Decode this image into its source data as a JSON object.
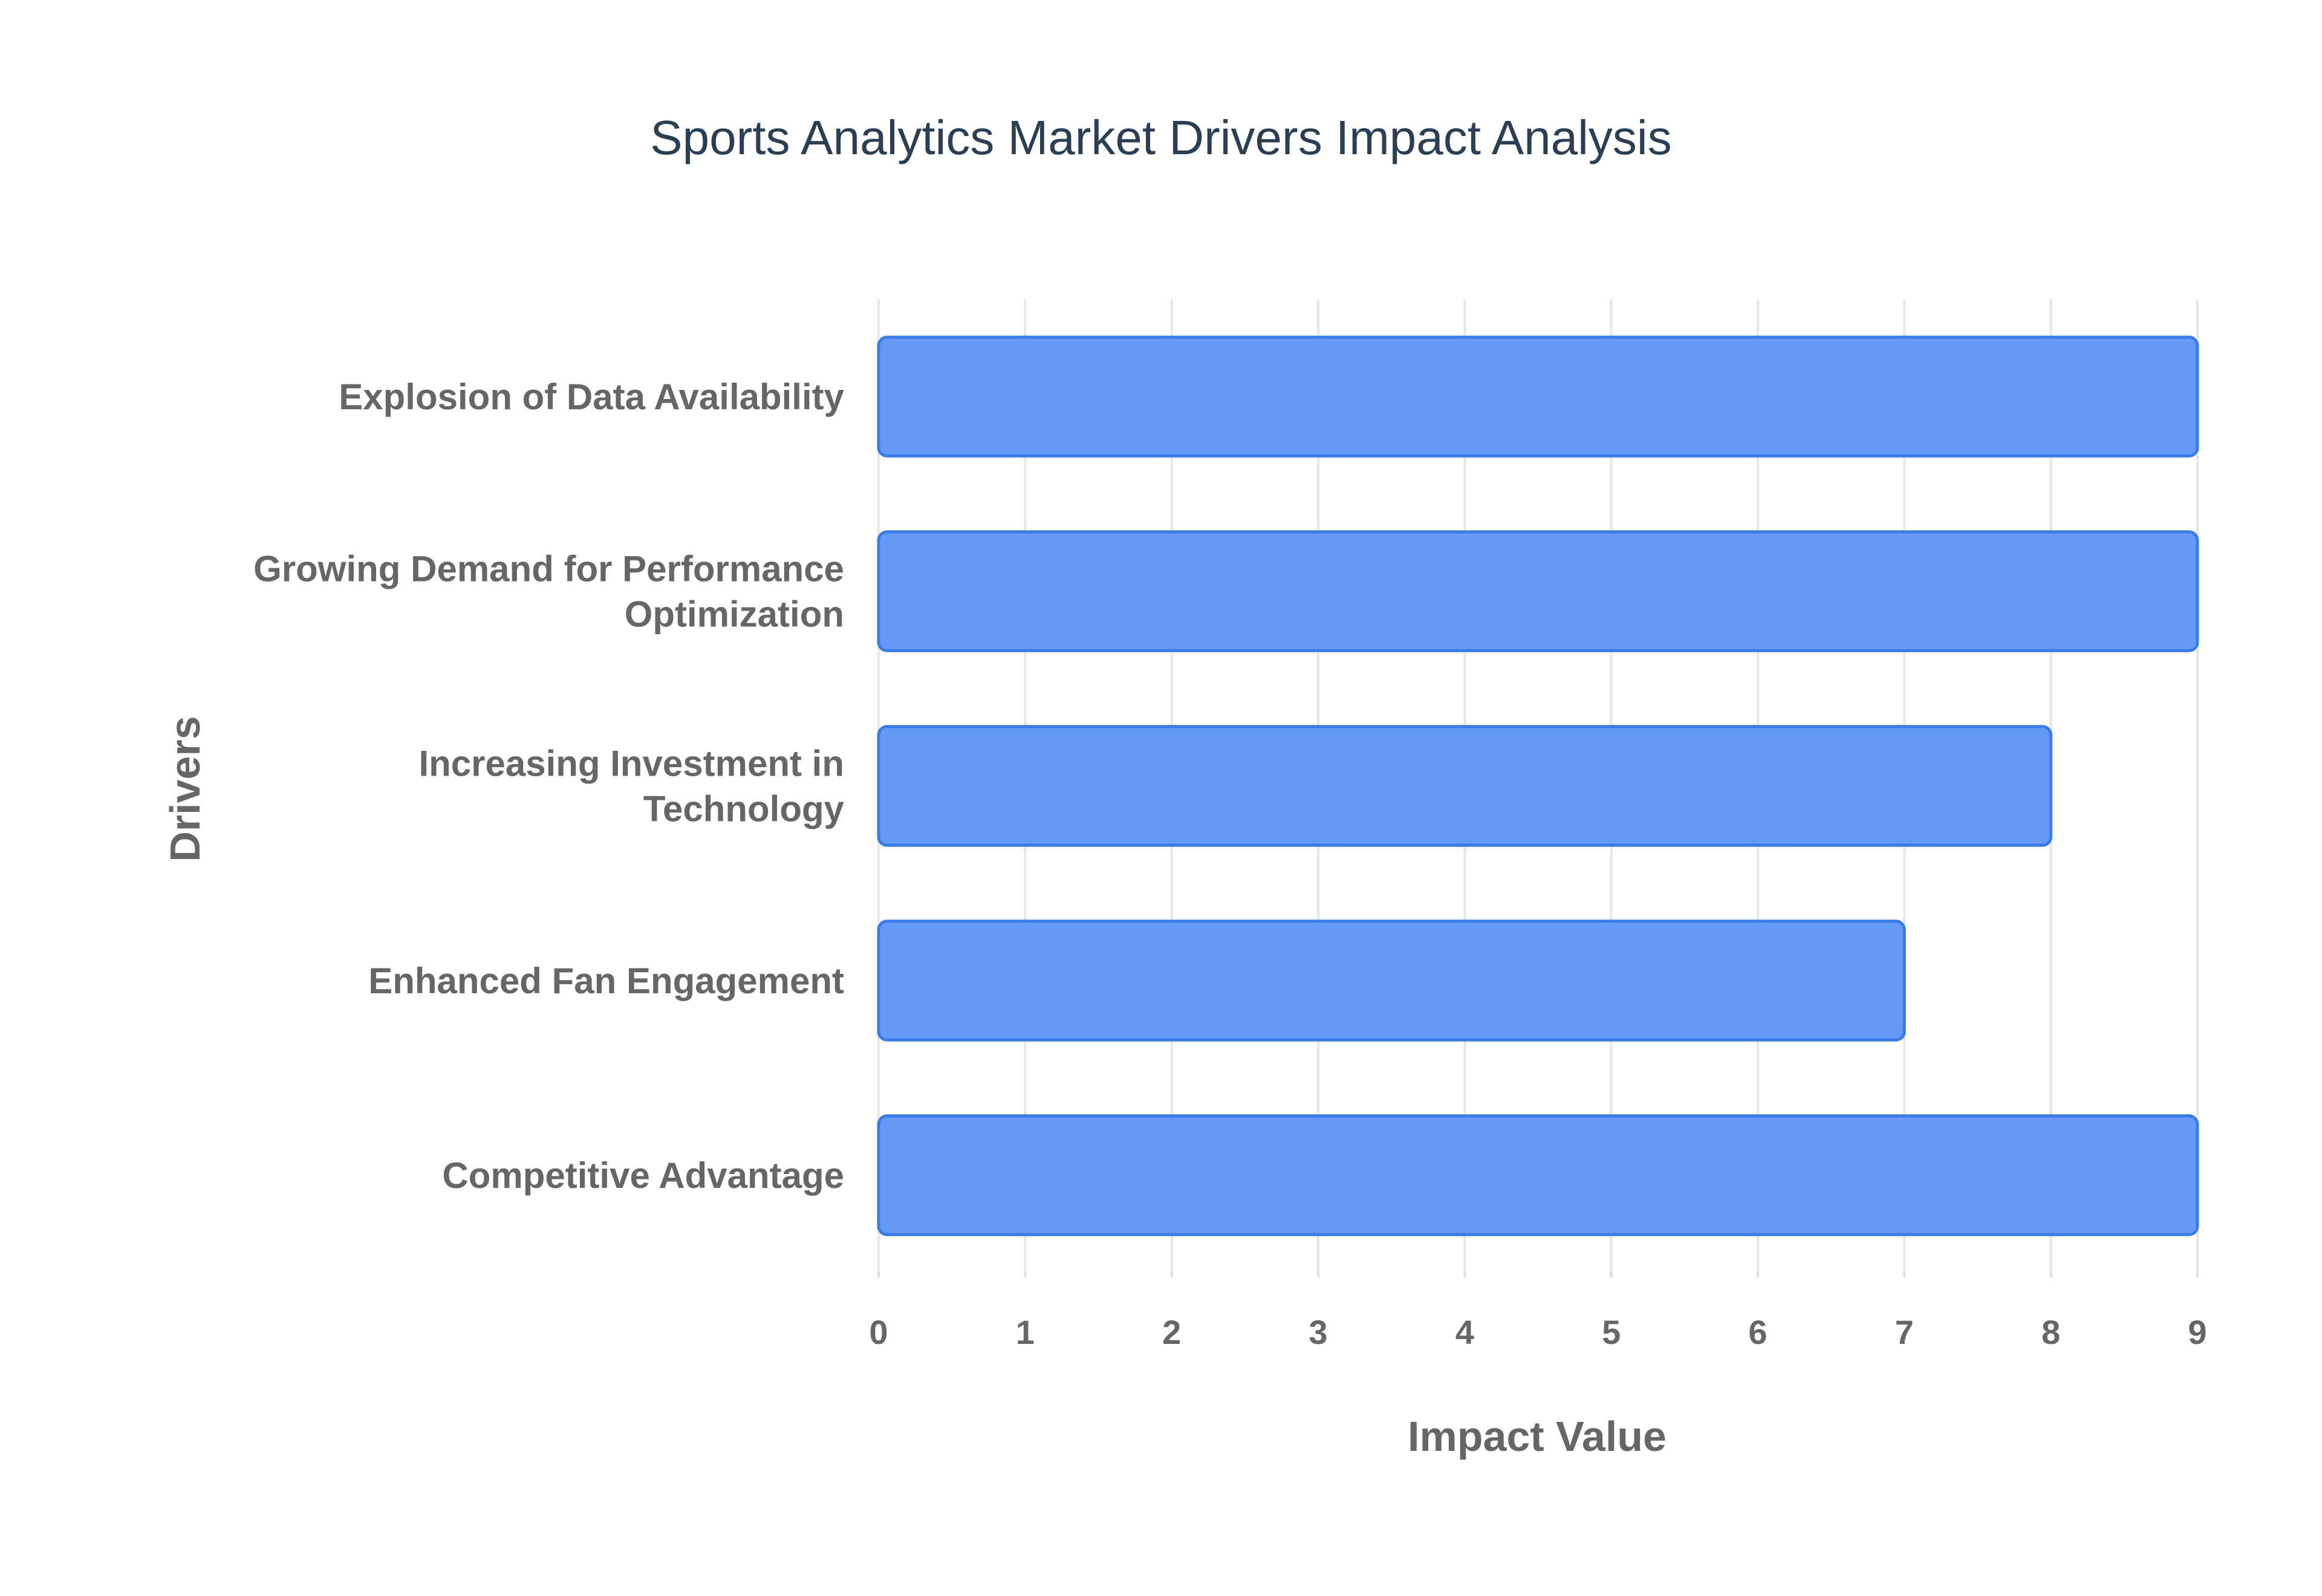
{
  "chart_data": {
    "type": "bar",
    "orientation": "horizontal",
    "title": "Sports Analytics Market Drivers Impact Analysis",
    "xlabel": "Impact Value",
    "ylabel": "Drivers",
    "categories": [
      "Explosion of Data Availability",
      "Growing Demand for Performance Optimization",
      "Increasing Investment in Technology",
      "Enhanced Fan Engagement",
      "Competitive Advantage"
    ],
    "category_lines": [
      [
        "Explosion of Data Availability"
      ],
      [
        "Growing Demand for Performance",
        "Optimization"
      ],
      [
        "Increasing Investment in",
        "Technology"
      ],
      [
        "Enhanced Fan Engagement"
      ],
      [
        "Competitive Advantage"
      ]
    ],
    "values": [
      9,
      9,
      8,
      7,
      9
    ],
    "xlim": [
      0,
      9
    ],
    "xticks": [
      0,
      1,
      2,
      3,
      4,
      5,
      6,
      7,
      8,
      9
    ],
    "grid": true,
    "legend": "none",
    "colors": {
      "bar_fill": "#6699f6",
      "bar_stroke": "#3b7be8",
      "title": "#2a3f54",
      "text": "#666666",
      "grid": "#e6e6e6"
    }
  }
}
